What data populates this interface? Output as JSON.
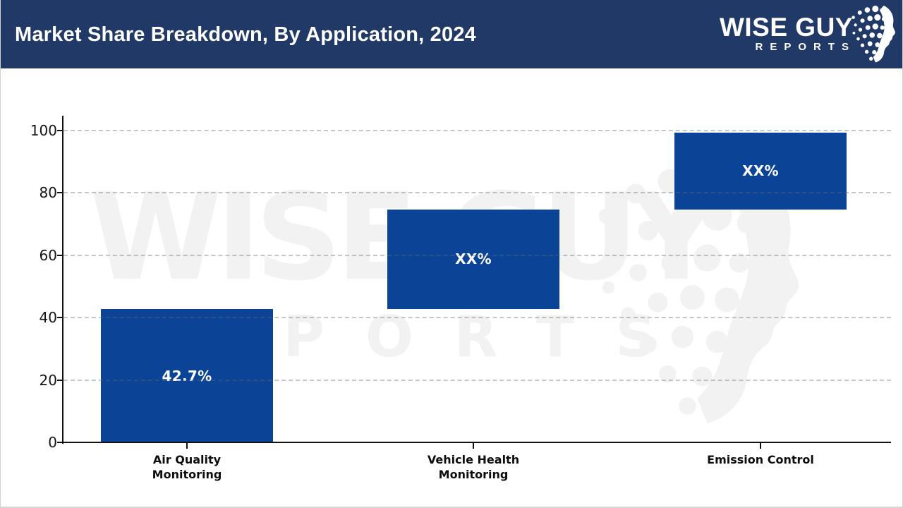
{
  "header": {
    "title": "Market Share Breakdown, By Application, 2024"
  },
  "logo": {
    "line1": "WISE GUY",
    "line2": "REPORTS",
    "face_icon": "wiseguy-dotted-face"
  },
  "watermark": {
    "line1": "WISE GUY",
    "line2": "REPORTS"
  },
  "colors": {
    "header_bg": "#213966",
    "bar_fill": "#0b4396",
    "bar_label_text": "#ffffff",
    "grid_dash": "#d9d9d9",
    "axis": "#111111",
    "watermark": "#f2f2f2"
  },
  "chart_data": {
    "type": "bar",
    "subtype": "floating-range-waterfall",
    "title": "Market Share Breakdown, By Application, 2024",
    "categories": [
      "Air Quality\nMonitoring",
      "Vehicle Health\nMonitoring",
      "Emission Control"
    ],
    "segments": [
      {
        "category": "Air Quality Monitoring",
        "from": 0,
        "to": 42.7,
        "label": "42.7%"
      },
      {
        "category": "Vehicle Health Monitoring",
        "from": 42.7,
        "to": 74.7,
        "label": "XX%"
      },
      {
        "category": "Emission Control",
        "from": 74.7,
        "to": 99.3,
        "label": "XX%"
      }
    ],
    "ylim": [
      0,
      100
    ],
    "yticks": [
      0,
      20,
      40,
      60,
      80,
      100
    ],
    "xlabel": "",
    "ylabel": "",
    "grid": "dashed-horizontal",
    "legend": "none",
    "bar_color": "#0b4396"
  }
}
